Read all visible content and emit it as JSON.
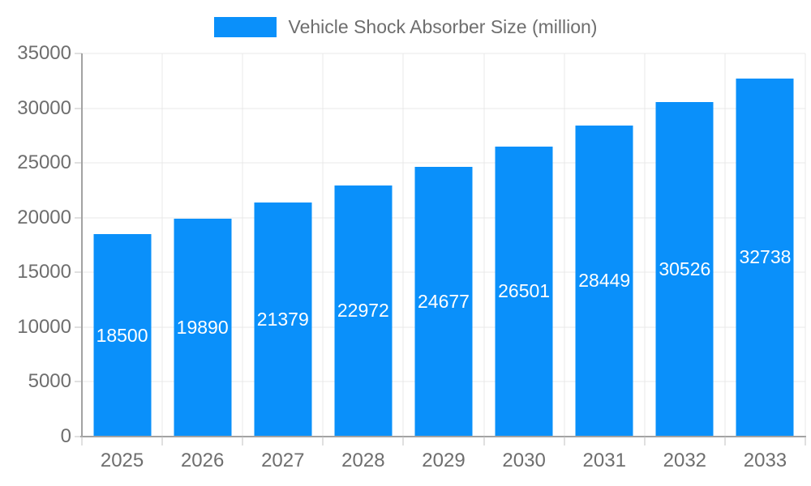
{
  "chart": {
    "background": "#ffffff",
    "colors": {
      "bar": "#0a90fa",
      "bar_label": "#ffffff",
      "axis_text": "#6e6e6e",
      "grid": "#e9e9e9",
      "axis_line": "#a2a2a2",
      "tick": "#c2c2c2"
    },
    "legend": {
      "label": "Vehicle Shock Absorber Size (million)"
    }
  },
  "chart_data": {
    "type": "bar",
    "title": "Vehicle Shock Absorber Size (million)",
    "categories": [
      "2025",
      "2026",
      "2027",
      "2028",
      "2029",
      "2030",
      "2031",
      "2032",
      "2033"
    ],
    "values": [
      18500,
      19890,
      21379,
      22972,
      24677,
      26501,
      28449,
      30526,
      32738
    ],
    "series": [
      {
        "name": "Vehicle Shock Absorber Size (million)",
        "values": [
          18500,
          19890,
          21379,
          22972,
          24677,
          26501,
          28449,
          30526,
          32738
        ]
      }
    ],
    "xlabel": "",
    "ylabel": "",
    "ylim": [
      0,
      35000
    ],
    "yticks": [
      0,
      5000,
      10000,
      15000,
      20000,
      25000,
      30000,
      35000
    ],
    "grid": true,
    "legend_position": "top",
    "value_labels": "inside-center"
  }
}
